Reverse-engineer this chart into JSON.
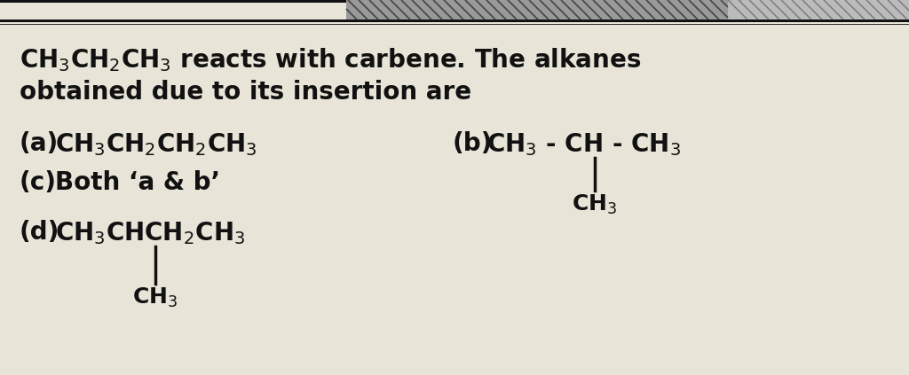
{
  "bg_color": "#e8e4d8",
  "text_color": "#111111",
  "top_stripe_color": "#222222",
  "hatch_bg_color": "#888888",
  "hatch_line_color": "#444444",
  "title_line1": "CH$_3$CH$_2$CH$_3$ reacts with carbene. The alkanes",
  "title_line2": "obtained due to its insertion are",
  "option_a_label": "(a)",
  "option_a_main": "CH$_3$CH$_2$CH$_2$CH$_3$",
  "option_b_label": "(b)",
  "option_b_main": "CH$_3$ - CH - CH$_3$",
  "option_b_sub": "CH$_3$",
  "option_c_label": "(c)",
  "option_c_main": "Both ‘a & b’",
  "option_d_label": "(d)",
  "option_d_main": "CH$_3$CHCH$_2$CH$_3$",
  "option_d_sub": "CH$_3$",
  "font_size_title": 20,
  "font_size_option": 20,
  "font_size_sub": 18
}
